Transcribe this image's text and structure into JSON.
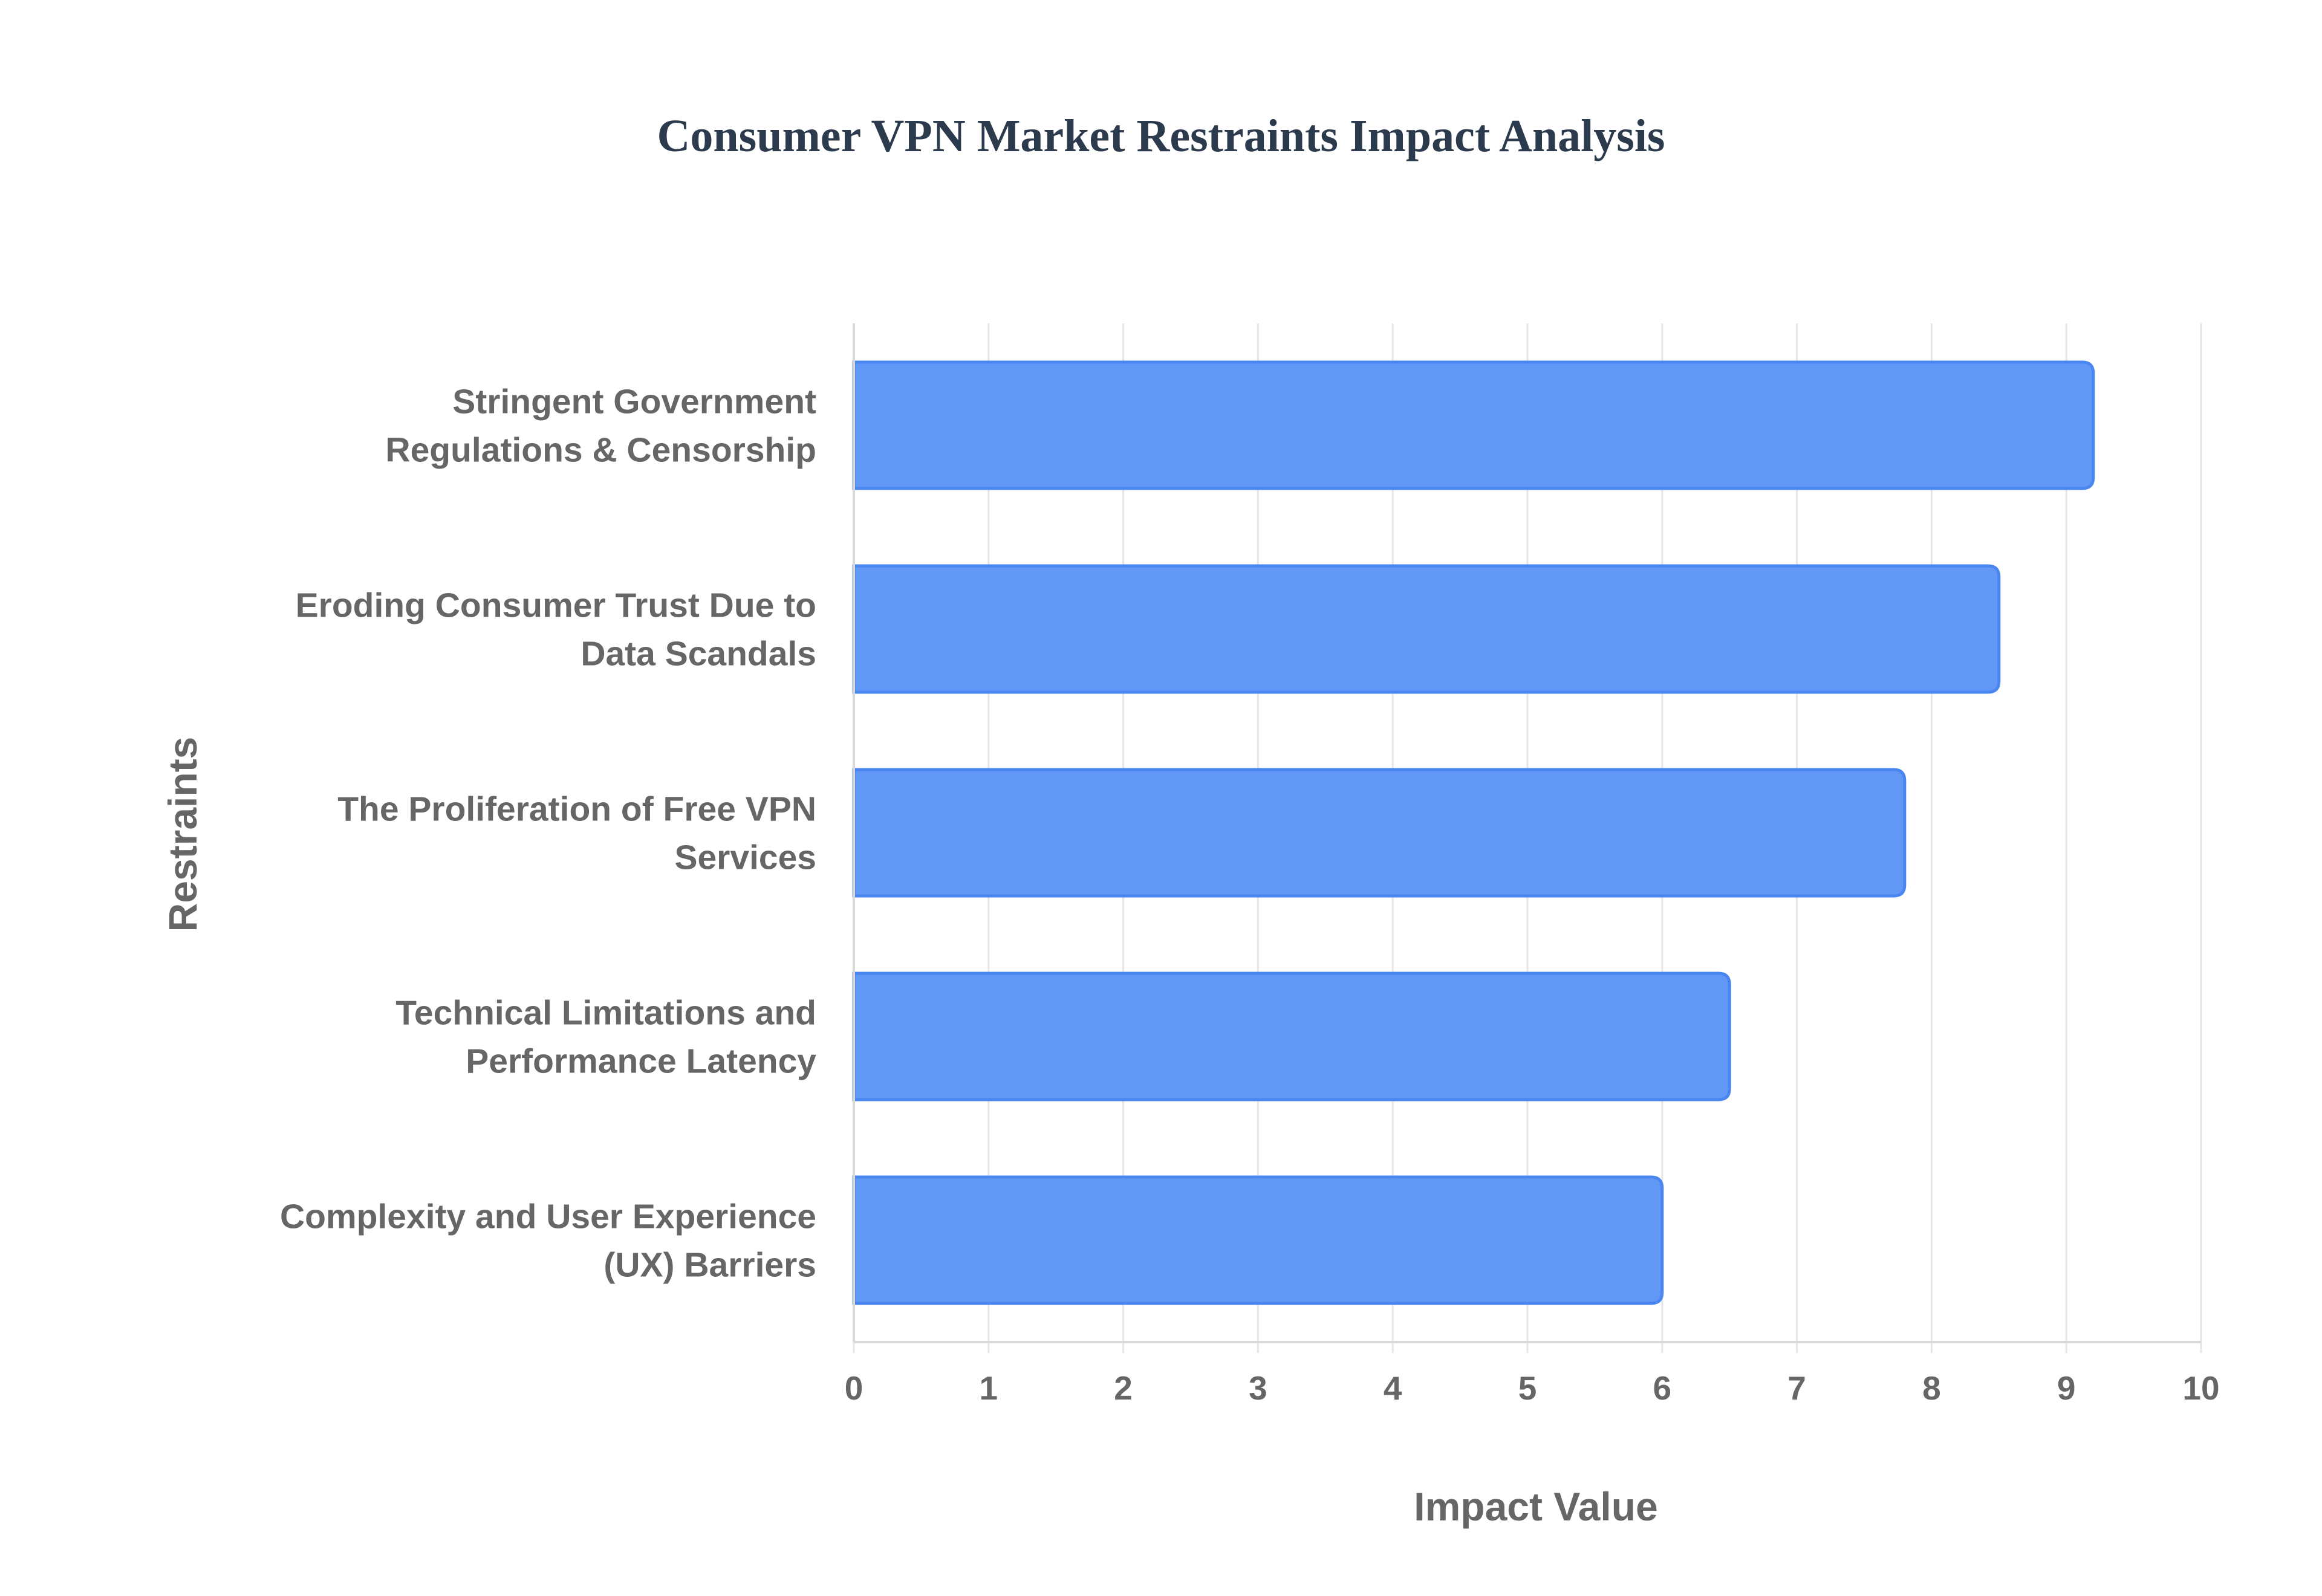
{
  "chart_data": {
    "type": "bar",
    "orientation": "horizontal",
    "title": "Consumer VPN Market Restraints Impact Analysis",
    "xlabel": "Impact Value",
    "ylabel": "Restraints",
    "xlim": [
      0,
      10
    ],
    "xticks": [
      "0",
      "1",
      "2",
      "3",
      "4",
      "5",
      "6",
      "7",
      "8",
      "9",
      "10"
    ],
    "grid": true,
    "legend": "none",
    "bar_color": "#6198f5",
    "bar_border_color": "#4a86ef",
    "categories": [
      [
        "Stringent Government",
        "Regulations & Censorship"
      ],
      [
        "Eroding Consumer Trust Due to",
        "Data Scandals"
      ],
      [
        "The Proliferation of Free VPN",
        "Services"
      ],
      [
        "Technical Limitations and",
        "Performance Latency"
      ],
      [
        "Complexity and User Experience",
        "(UX) Barriers"
      ]
    ],
    "values": [
      9.2,
      8.5,
      7.8,
      6.5,
      6.0
    ]
  }
}
